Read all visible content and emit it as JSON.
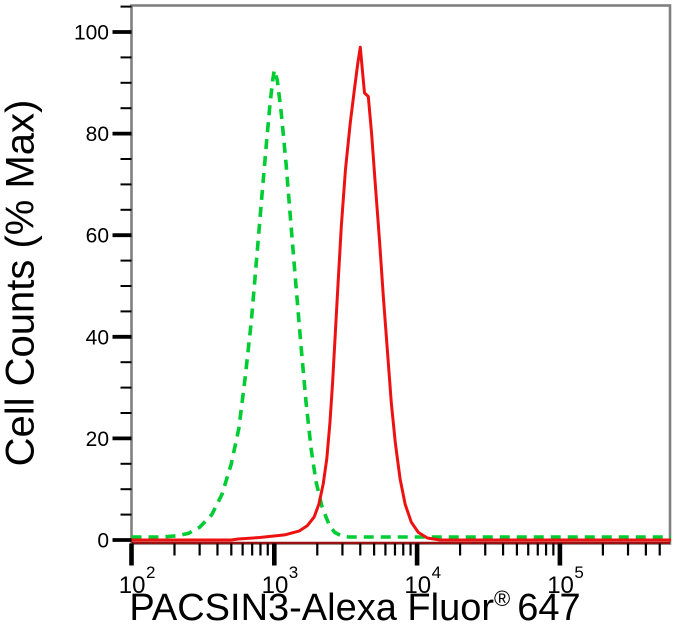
{
  "chart_data": {
    "type": "line",
    "subtype": "flow-cytometry-overlay-histogram",
    "title": "",
    "xlabel": "PACSIN3-Alexa Fluor® 647",
    "xlabel_parts": {
      "main": "PACSIN3-Alexa Fluor",
      "registered": "®",
      "suffix": "647"
    },
    "ylabel": "Cell Counts (% Max)",
    "x_scale": "log10",
    "x_range": [
      100,
      600000
    ],
    "y_range": [
      0,
      105
    ],
    "grid": false,
    "legend": "none",
    "x_major_ticks": [
      {
        "value": 100,
        "base": "10",
        "exp": "2"
      },
      {
        "value": 1000,
        "base": "10",
        "exp": "3"
      },
      {
        "value": 10000,
        "base": "10",
        "exp": "4"
      },
      {
        "value": 100000,
        "base": "10",
        "exp": "5"
      }
    ],
    "x_minor_tick_multipliers": [
      2,
      3,
      4,
      5,
      6,
      7,
      8,
      9
    ],
    "y_major_ticks": [
      0,
      20,
      40,
      60,
      80,
      100
    ],
    "y_minor_step": 5,
    "frame_color": "#808080",
    "tick_color": "#000000",
    "baseline_color": "#991111",
    "series": [
      {
        "name": "negative-control",
        "line_style": "dashed",
        "color": "#00cc33",
        "peak": {
          "x": 1000,
          "y": 92.5
        },
        "points": [
          [
            100,
            0.6
          ],
          [
            160,
            0.6
          ],
          [
            205,
            0.8
          ],
          [
            250,
            1.3
          ],
          [
            300,
            2.5
          ],
          [
            365,
            5
          ],
          [
            430,
            9
          ],
          [
            500,
            15
          ],
          [
            565,
            22
          ],
          [
            625,
            32
          ],
          [
            690,
            43
          ],
          [
            755,
            56
          ],
          [
            820,
            68
          ],
          [
            880,
            78
          ],
          [
            935,
            86
          ],
          [
            975,
            90.5
          ],
          [
            1000,
            92.5
          ],
          [
            1050,
            90.5
          ],
          [
            1120,
            84
          ],
          [
            1210,
            74
          ],
          [
            1310,
            62
          ],
          [
            1420,
            50
          ],
          [
            1540,
            38
          ],
          [
            1670,
            27
          ],
          [
            1810,
            18
          ],
          [
            1960,
            11.5
          ],
          [
            2160,
            6.5
          ],
          [
            2420,
            3
          ],
          [
            2650,
            1.5
          ],
          [
            2950,
            0.8
          ],
          [
            3300,
            0.6
          ],
          [
            600000,
            0.6
          ]
        ]
      },
      {
        "name": "PACSIN3-Alexa-Fluor-647",
        "line_style": "solid",
        "color": "#ee1111",
        "peak": {
          "x": 4000,
          "y": 97
        },
        "points": [
          [
            100,
            0
          ],
          [
            500,
            0
          ],
          [
            560,
            0.2
          ],
          [
            790,
            0.5
          ],
          [
            1180,
            1
          ],
          [
            1500,
            1.8
          ],
          [
            1700,
            2.8
          ],
          [
            1900,
            4.5
          ],
          [
            2050,
            7
          ],
          [
            2200,
            11
          ],
          [
            2330,
            16
          ],
          [
            2450,
            23
          ],
          [
            2560,
            31
          ],
          [
            2680,
            41
          ],
          [
            2800,
            51
          ],
          [
            2950,
            62
          ],
          [
            3150,
            73
          ],
          [
            3400,
            82
          ],
          [
            3650,
            89
          ],
          [
            3850,
            94
          ],
          [
            4000,
            97
          ],
          [
            4150,
            92
          ],
          [
            4280,
            88
          ],
          [
            4550,
            87.3
          ],
          [
            4800,
            80
          ],
          [
            5100,
            70
          ],
          [
            5450,
            59
          ],
          [
            5800,
            48
          ],
          [
            6200,
            37
          ],
          [
            6600,
            27
          ],
          [
            7050,
            19
          ],
          [
            7600,
            12
          ],
          [
            8250,
            7
          ],
          [
            9100,
            3.5
          ],
          [
            10200,
            1.5
          ],
          [
            11800,
            0.4
          ],
          [
            14500,
            0
          ],
          [
            600000,
            0
          ]
        ]
      }
    ]
  }
}
